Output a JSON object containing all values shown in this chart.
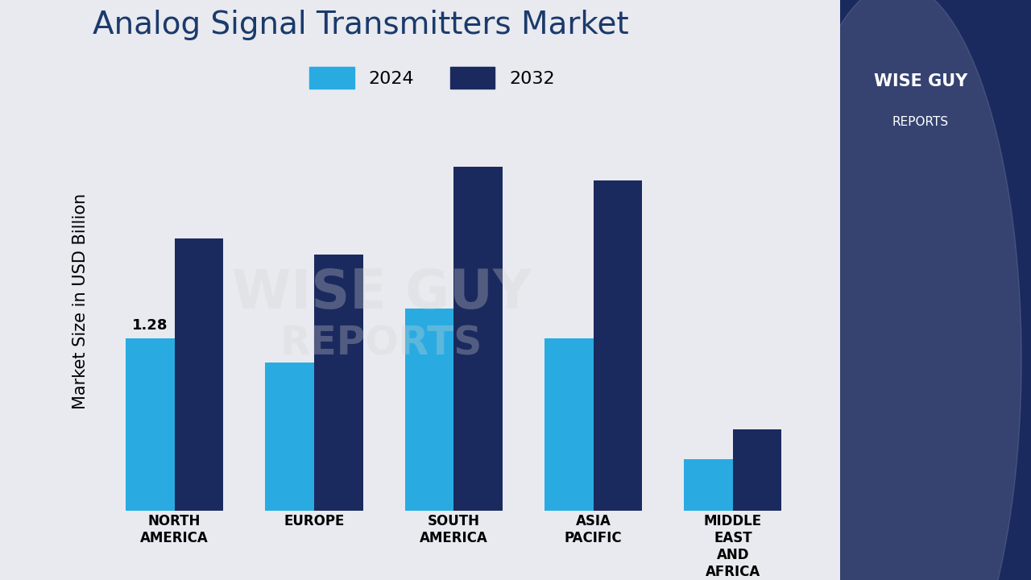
{
  "title": "Analog Signal Transmitters Market",
  "ylabel": "Market Size in USD Billion",
  "categories": [
    "NORTH\nAMERICA",
    "EUROPE",
    "SOUTH\nAMERICA",
    "ASIA\nPACIFIC",
    "MIDDLE\nEAST\nAND\nAFRICA"
  ],
  "values_2024": [
    1.28,
    1.1,
    1.5,
    1.28,
    0.38
  ],
  "values_2032": [
    2.02,
    1.9,
    2.55,
    2.45,
    0.6
  ],
  "bar_color_2024": "#29ABE2",
  "bar_color_2032": "#1B2A5E",
  "background_color": "#E8EAF0",
  "right_panel_color": "#1B2A5E",
  "annotation_text": "1.28",
  "annotation_index": 0,
  "legend_labels": [
    "2024",
    "2032"
  ],
  "title_color": "#1B3A6B",
  "title_fontsize": 28,
  "ylabel_fontsize": 15,
  "bar_width": 0.35,
  "legend_fontsize": 16,
  "ylim": [
    0,
    3.1
  ]
}
